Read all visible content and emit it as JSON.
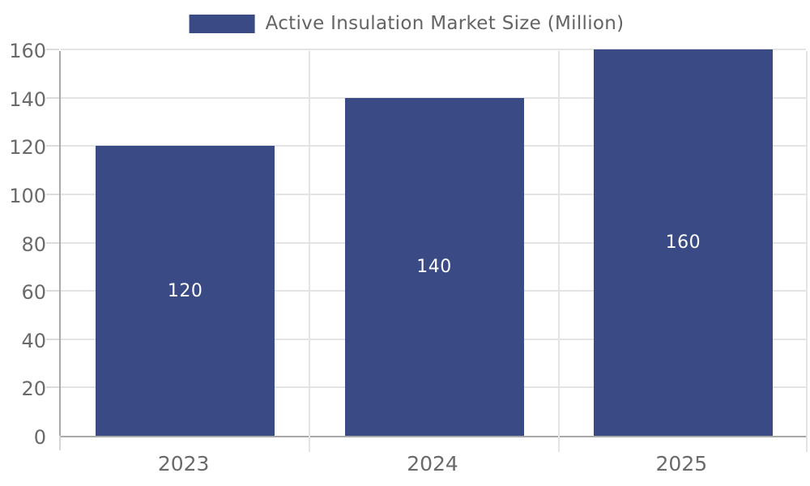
{
  "chart_data": {
    "type": "bar",
    "title": "Active Insulation Market Size (Million)",
    "categories": [
      "2023",
      "2024",
      "2025"
    ],
    "series": [
      {
        "name": "Active Insulation Market Size (Million)",
        "values": [
          120,
          140,
          160
        ]
      }
    ],
    "value_labels": [
      "120",
      "140",
      "160"
    ],
    "xlabel": "",
    "ylabel": "",
    "ylim": [
      0,
      160
    ],
    "yticks": [
      0,
      20,
      40,
      60,
      80,
      100,
      120,
      140,
      160
    ],
    "grid": true,
    "legend_position": "top-center",
    "colors": {
      "bar": "#394A84",
      "value_label": "#ffffff",
      "gridline": "#e4e4e4",
      "axis_line": "#a9a9a9",
      "tick_label": "#6a6a6a",
      "legend_text": "#646464"
    }
  },
  "legend": {
    "label": "Active Insulation Market Size (Million)"
  }
}
